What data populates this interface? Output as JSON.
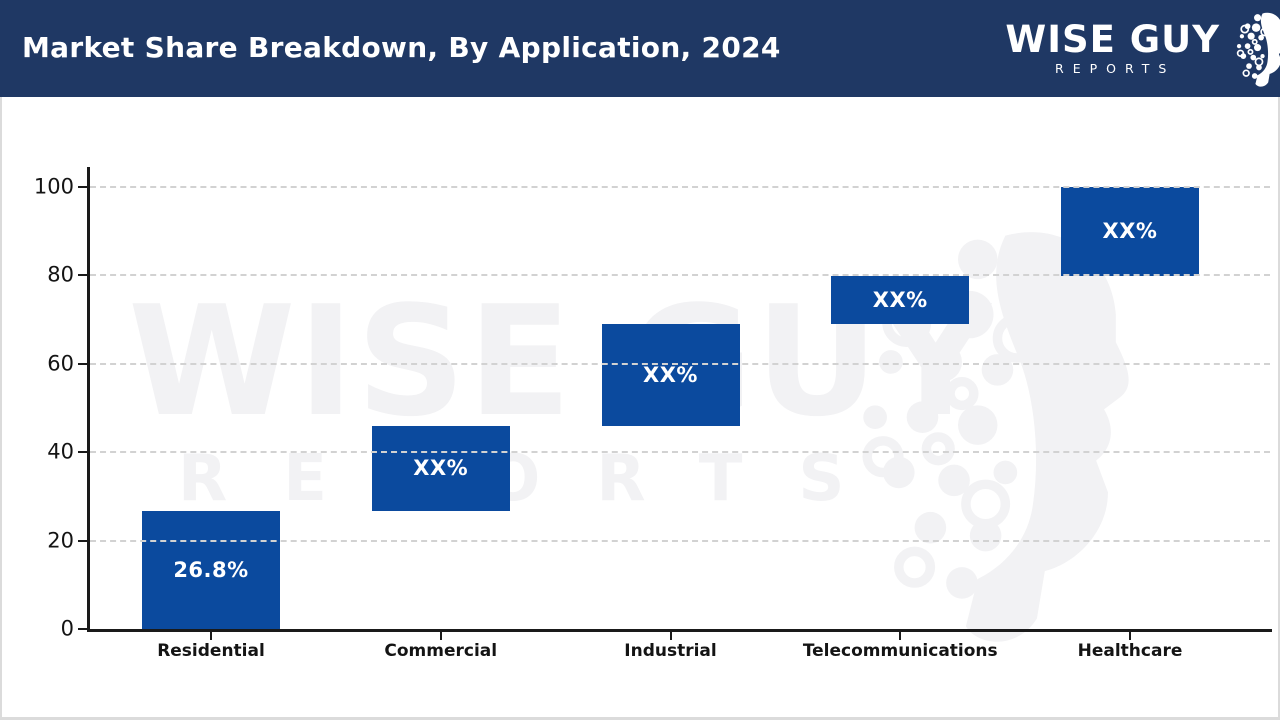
{
  "header": {
    "title": "Market Share Breakdown, By Application, 2024",
    "background_color": "#1f3864",
    "logo": {
      "line1": "WISE GUY",
      "line2": "REPORTS",
      "head_icon": "dotted-face-profile"
    }
  },
  "watermark": {
    "line1": "WISE GUY",
    "line2": "REPORTS",
    "head_icon": "dotted-face-profile"
  },
  "chart_data": {
    "type": "bar",
    "subtype": "floating-waterfall-columns",
    "title": "Market Share Breakdown, By Application, 2024",
    "categories": [
      "Residential",
      "Commercial",
      "Industrial",
      "Telecommunications",
      "Healthcare"
    ],
    "series": [
      {
        "name": "Market share (%)",
        "segments": [
          [
            0,
            26.8
          ],
          [
            26.8,
            45.9
          ],
          [
            45.9,
            69.0
          ],
          [
            69.0,
            79.9
          ],
          [
            79.9,
            100.0
          ]
        ],
        "bar_labels": [
          "26.8%",
          "XX%",
          "XX%",
          "XX%",
          "XX%"
        ]
      }
    ],
    "ylim": [
      0,
      100
    ],
    "yticks": [
      0,
      20,
      40,
      60,
      80,
      100
    ],
    "xlabel": "",
    "ylabel": "",
    "grid": "horizontal-dashed",
    "legend": "none",
    "bar_color": "#0b4a9e",
    "bar_label_color": "#ffffff",
    "axis_color": "#1a1a1a",
    "gridline_color": "#d2d2d2",
    "tick_label_color": "#141414"
  }
}
